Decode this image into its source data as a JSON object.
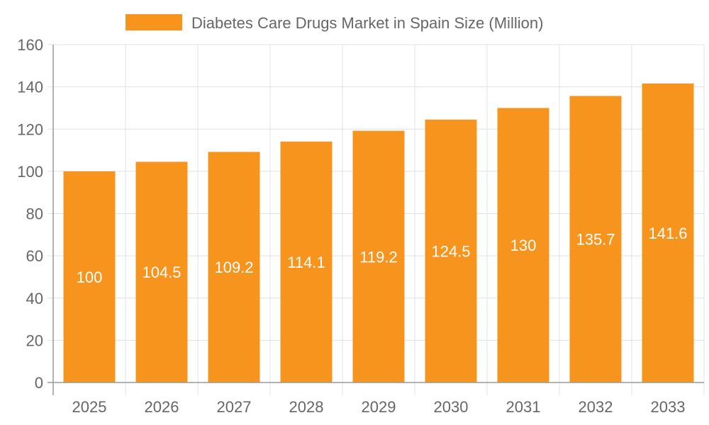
{
  "chart_data": {
    "type": "bar",
    "title": "",
    "legend": {
      "position": "top",
      "entries": [
        "Diabetes Care Drugs Market in Spain Size (Million)"
      ]
    },
    "series": [
      {
        "name": "Diabetes Care Drugs Market in Spain Size (Million)",
        "values": [
          100,
          104.5,
          109.2,
          114.1,
          119.2,
          124.5,
          130,
          135.7,
          141.6
        ]
      }
    ],
    "categories": [
      "2025",
      "2026",
      "2027",
      "2028",
      "2029",
      "2030",
      "2031",
      "2032",
      "2033"
    ],
    "data_labels": [
      "100",
      "104.5",
      "109.2",
      "114.1",
      "119.2",
      "124.5",
      "130",
      "135.7",
      "141.6"
    ],
    "y_ticks": [
      "0",
      "20",
      "40",
      "60",
      "80",
      "100",
      "120",
      "140",
      "160"
    ],
    "xlabel": "",
    "ylabel": "",
    "ylim": [
      0,
      160
    ],
    "grid": true,
    "colors": {
      "bar": "#f7941d",
      "grid": "#e0e0e0",
      "axis": "#999999",
      "text": "#666666",
      "label": "#ffffff"
    }
  }
}
